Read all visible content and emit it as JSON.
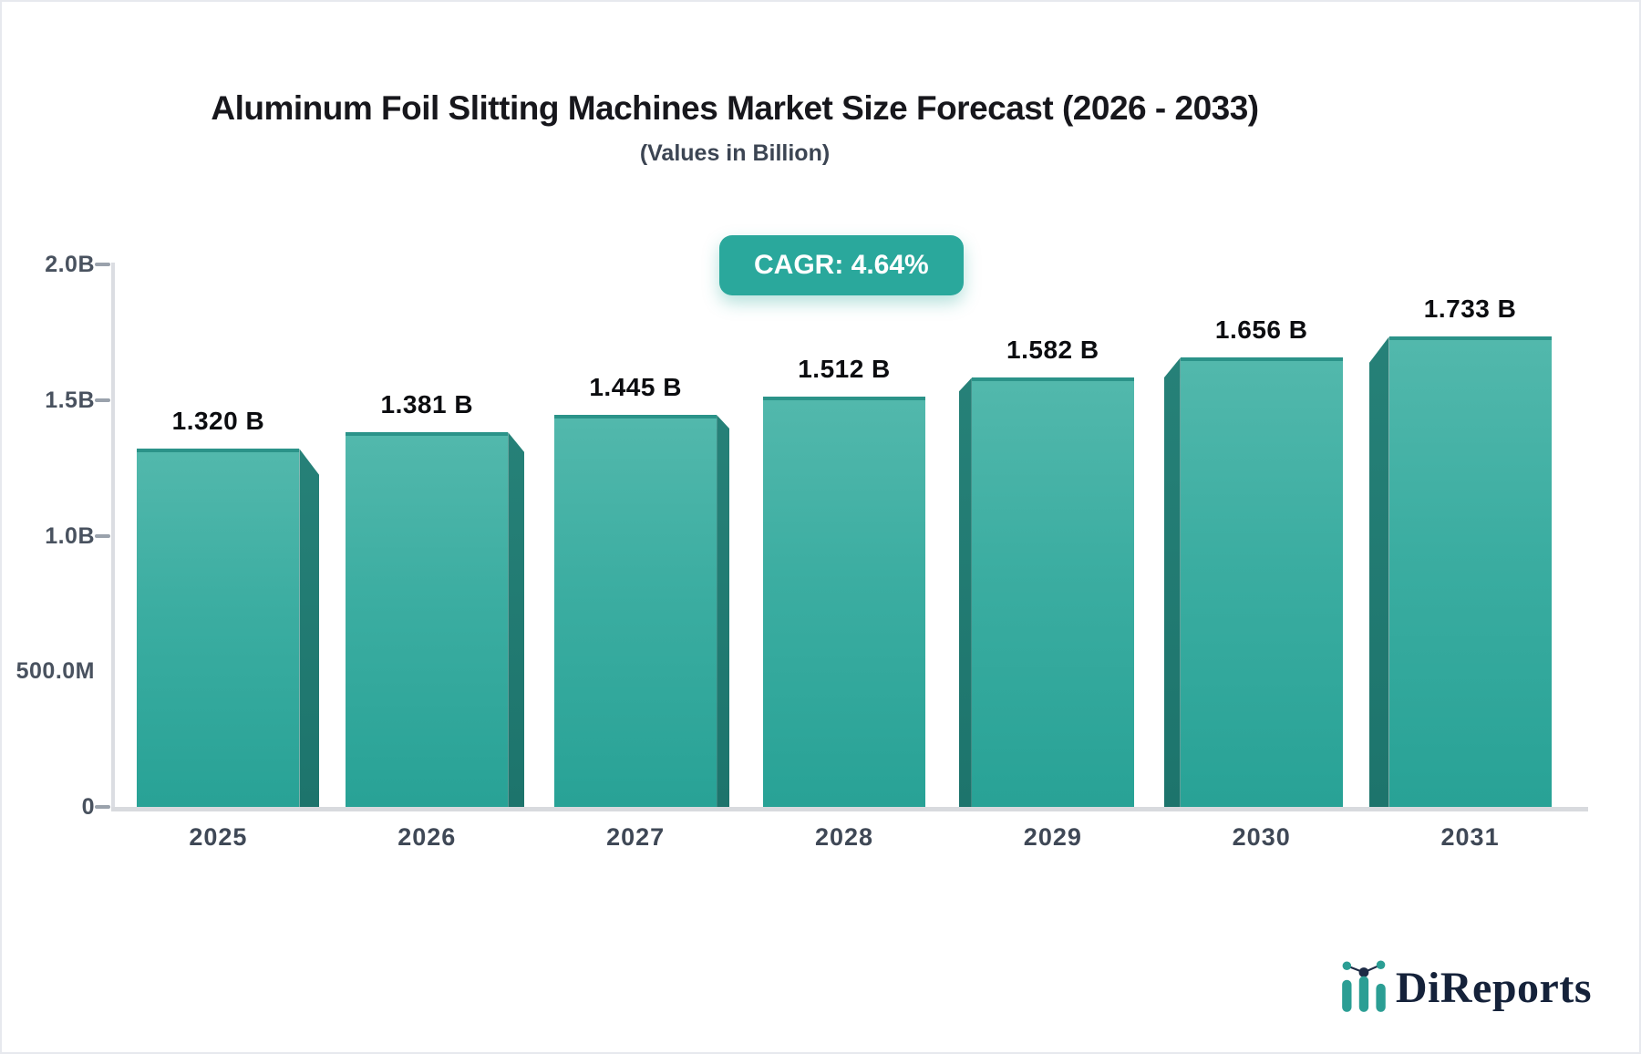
{
  "header": {
    "title": "Aluminum Foil Slitting Machines Market Size Forecast (2026 - 2033)",
    "subtitle": "(Values in Billion)"
  },
  "badge": {
    "label": "CAGR: 4.64%"
  },
  "chart_data": {
    "type": "bar",
    "title": "Aluminum Foil Slitting Machines Market Size Forecast (2026 - 2033)",
    "subtitle": "(Values in Billion)",
    "cagr_label": "CAGR: 4.64%",
    "categories": [
      "2025",
      "2026",
      "2027",
      "2028",
      "2029",
      "2030",
      "2031"
    ],
    "values": [
      1.32,
      1.381,
      1.445,
      1.512,
      1.582,
      1.656,
      1.733
    ],
    "value_labels": [
      "1.320 B",
      "1.381 B",
      "1.445 B",
      "1.512 B",
      "1.582 B",
      "1.656 B",
      "1.733 B"
    ],
    "ylim": [
      0,
      2.0
    ],
    "yticks": [
      {
        "label": "2.0B",
        "value": 2.0,
        "tick": true
      },
      {
        "label": "1.5B",
        "value": 1.5,
        "tick": true
      },
      {
        "label": "1.0B",
        "value": 1.0,
        "tick": true
      },
      {
        "label": "500.0M",
        "value": 0.5,
        "tick": false
      },
      {
        "label": "0",
        "value": 0.0,
        "tick": true
      }
    ],
    "grid": false,
    "legend": false,
    "colors": {
      "bar_top": "#52b8ac",
      "bar_bottom": "#28a296",
      "bar_edge": "#2b9389",
      "bar_side": "#1f7a71",
      "badge_bg": "#2aa89c",
      "axis": "#dbdde2",
      "tick": "#9aa2ac",
      "label_text": "#0c0d10",
      "axis_text": "#49525f"
    }
  },
  "logo": {
    "text": "DiReports",
    "icon": "bar-line-chart-icon",
    "color": "#15223a",
    "accent": "#2b9e94"
  }
}
